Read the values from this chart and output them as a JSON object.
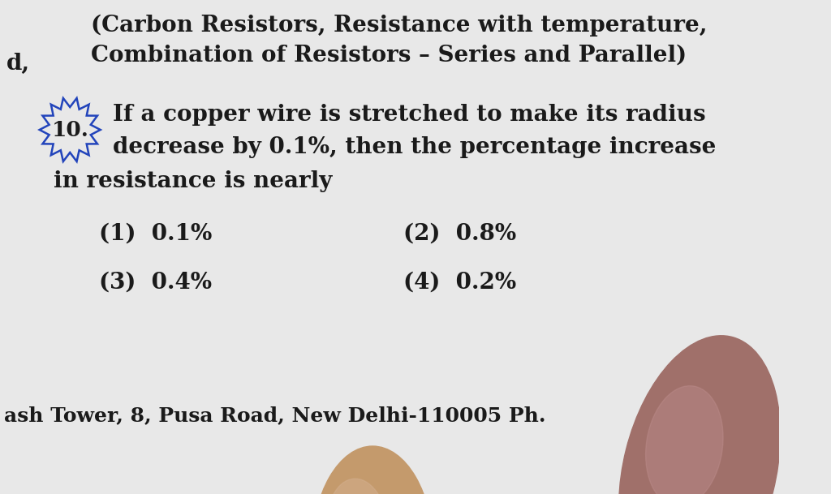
{
  "background_color": "#e8e8e8",
  "title_line1": "(Carbon Resistors, Resistance with temperature,",
  "title_line2": "Combination of Resistors – Series and Parallel)",
  "label_d": "d,",
  "question_number": "10.",
  "question_text_line1": "If a copper wire is stretched to make its radius",
  "question_text_line2": "decrease by 0.1%, then the percentage increase",
  "question_text_line3": "in resistance is nearly",
  "option1": "(1)  0.1%",
  "option2": "(2)  0.8%",
  "option3": "(3)  0.4%",
  "option4": "(4)  0.2%",
  "footer": "ash Tower, 8, Pusa Road, New Delhi-110005 Ph.",
  "text_color": "#1a1a1a",
  "starburst_color": "#2244bb",
  "title_fontsize": 20,
  "question_fontsize": 20,
  "option_fontsize": 20,
  "footer_fontsize": 18,
  "finger1_color": "#c49a6c",
  "finger2_color": "#a0706a"
}
